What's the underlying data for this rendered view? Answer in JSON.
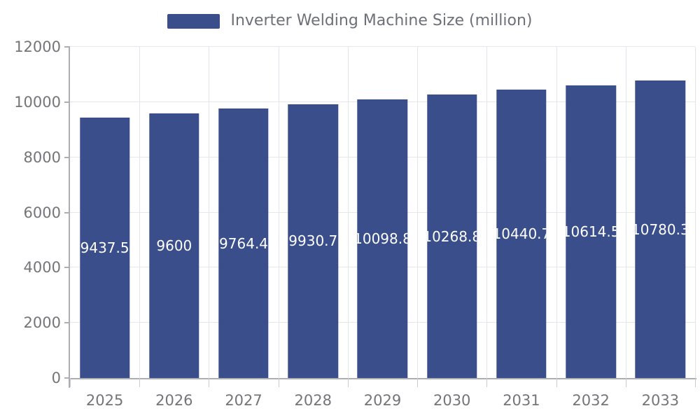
{
  "legend": {
    "label": "Inverter Welding Machine Size (million)"
  },
  "colors": {
    "bar": "#3A4E8C",
    "axis_text": "#757579",
    "legend_text": "#6E7079",
    "bar_label_text": "#FFFFFF",
    "gridline": "#E5E7EA",
    "axis_line": "#ADAEB3"
  },
  "chart_data": {
    "type": "bar",
    "title": "",
    "xlabel": "",
    "ylabel": "",
    "legend": [
      "Inverter Welding Machine Size (million)"
    ],
    "legend_position": "top",
    "grid": true,
    "categories": [
      "2025",
      "2026",
      "2027",
      "2028",
      "2029",
      "2030",
      "2031",
      "2032",
      "2033"
    ],
    "values": [
      9437.5,
      9600,
      9764.4,
      9930.7,
      10098.8,
      10268.8,
      10440.7,
      10614.5,
      10780.3
    ],
    "bar_labels": [
      "9437.5",
      "9600",
      "9764.4",
      "9930.7",
      "10098.8",
      "10268.8",
      "10440.7",
      "10614.5",
      "10780.3"
    ],
    "ylim": [
      0,
      12000
    ],
    "yticks": [
      0,
      2000,
      4000,
      6000,
      8000,
      10000,
      12000
    ]
  }
}
